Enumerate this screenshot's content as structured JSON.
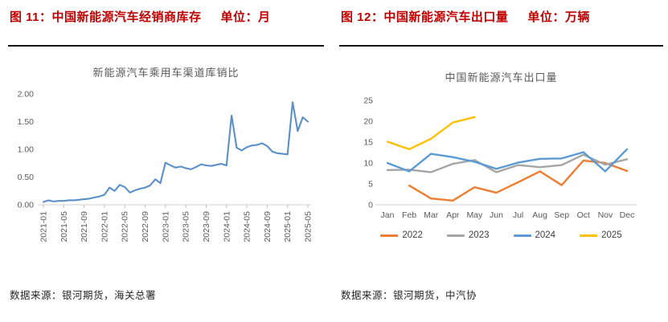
{
  "figures": [
    {
      "caption": "图 11：中国新能源汽车经销商库存",
      "unit": "单位：月",
      "source": "数据来源：银河期货，海关总署"
    },
    {
      "caption": "图 12：中国新能源汽车出口量",
      "unit": "单位：万辆",
      "source": "数据来源：银河期货，中汽协"
    }
  ],
  "colors": {
    "header_red": "#c00000",
    "title_gray": "#595959",
    "axis_label_gray": "#595959",
    "axis_line_gray": "#d9d9d9",
    "tick_gray": "#bfbfbf",
    "rule_black": "#141414"
  },
  "chart_data": [
    {
      "type": "line",
      "title": "新能源汽车乘用车渠道库销比",
      "x_start": "2021-01",
      "x_end": "2025-05",
      "x_freq": "monthly",
      "x_tick_step": 4,
      "x_tick_labels": [
        "2021-01",
        "2021-05",
        "2021-09",
        "2022-01",
        "2022-05",
        "2022-09",
        "2023-01",
        "2023-05",
        "2023-09",
        "2024-01",
        "2024-05",
        "2024-09",
        "2025-01",
        "2025-05"
      ],
      "ylim": [
        0,
        2.0
      ],
      "y_tick_labels": [
        "0.00",
        "0.50",
        "1.00",
        "1.50",
        "2.00"
      ],
      "grid": false,
      "legend": "none",
      "series": [
        {
          "name": "新能源汽车乘用车渠道库销比",
          "color": "#5b8fc9",
          "values": [
            0.05,
            0.08,
            0.06,
            0.07,
            0.07,
            0.08,
            0.08,
            0.09,
            0.1,
            0.11,
            0.13,
            0.15,
            0.18,
            0.31,
            0.25,
            0.36,
            0.32,
            0.22,
            0.26,
            0.29,
            0.31,
            0.35,
            0.46,
            0.39,
            0.76,
            0.71,
            0.67,
            0.69,
            0.66,
            0.64,
            0.68,
            0.73,
            0.71,
            0.7,
            0.72,
            0.74,
            0.71,
            1.61,
            1.03,
            0.98,
            1.04,
            1.07,
            1.08,
            1.11,
            1.06,
            0.96,
            0.93,
            0.92,
            0.91,
            1.85,
            1.33,
            1.58,
            1.5
          ]
        }
      ]
    },
    {
      "type": "line",
      "title": "中国新能源汽车出口量",
      "categories": [
        "Jan",
        "Feb",
        "Mar",
        "Apr",
        "May",
        "Jun",
        "Jul",
        "Aug",
        "Sep",
        "Oct",
        "Nov",
        "Dec"
      ],
      "ylim": [
        0,
        25
      ],
      "y_tick_labels": [
        "0",
        "5",
        "10",
        "15",
        "20",
        "25"
      ],
      "grid": false,
      "legend_position": "bottom",
      "series": [
        {
          "name": "2022",
          "color": "#ed7d31",
          "values": [
            null,
            4.6,
            1.5,
            1.0,
            4.2,
            2.9,
            5.4,
            8.0,
            4.7,
            10.6,
            10.0,
            8.1
          ]
        },
        {
          "name": "2023",
          "color": "#a5a5a5",
          "values": [
            8.3,
            8.4,
            7.8,
            9.8,
            10.7,
            7.8,
            9.5,
            9.0,
            9.5,
            12.0,
            9.6,
            10.9
          ]
        },
        {
          "name": "2024",
          "color": "#5b9bd5",
          "values": [
            10.0,
            8.0,
            12.2,
            11.4,
            10.3,
            8.6,
            10.1,
            11.0,
            11.1,
            12.6,
            8.0,
            13.3
          ]
        },
        {
          "name": "2025",
          "color": "#ffc000",
          "values": [
            15.1,
            13.3,
            15.8,
            19.7,
            21.0,
            null,
            null,
            null,
            null,
            null,
            null,
            null
          ]
        }
      ]
    }
  ]
}
